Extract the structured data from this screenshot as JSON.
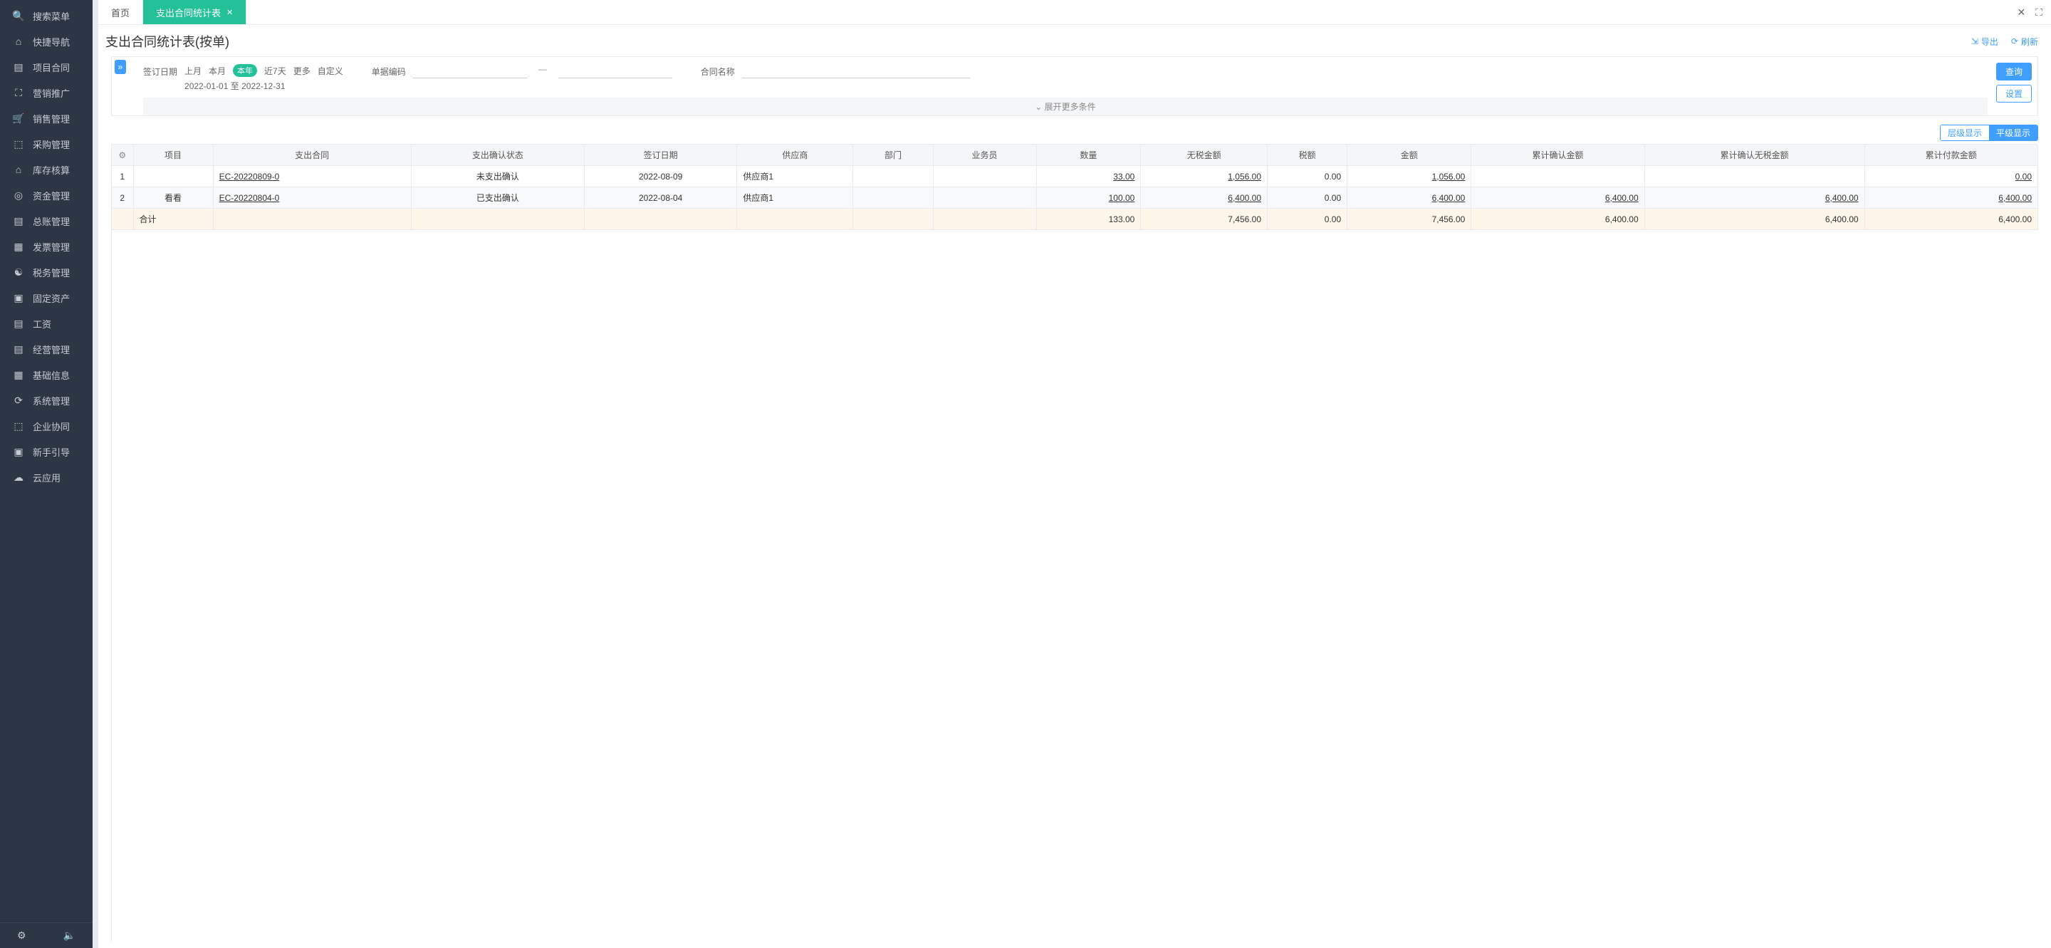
{
  "sidebar": {
    "items": [
      {
        "icon": "search",
        "label": "搜索菜单"
      },
      {
        "icon": "home",
        "label": "快捷导航"
      },
      {
        "icon": "doc",
        "label": "项目合同"
      },
      {
        "icon": "gift",
        "label": "营销推广"
      },
      {
        "icon": "cart",
        "label": "销售管理"
      },
      {
        "icon": "box",
        "label": "采购管理"
      },
      {
        "icon": "house",
        "label": "库存核算"
      },
      {
        "icon": "money",
        "label": "资金管理"
      },
      {
        "icon": "book",
        "label": "总账管理"
      },
      {
        "icon": "invoice",
        "label": "发票管理"
      },
      {
        "icon": "tax",
        "label": "税务管理"
      },
      {
        "icon": "asset",
        "label": "固定资产"
      },
      {
        "icon": "salary",
        "label": "工资"
      },
      {
        "icon": "manage",
        "label": "经营管理"
      },
      {
        "icon": "info",
        "label": "基础信息"
      },
      {
        "icon": "sys",
        "label": "系统管理"
      },
      {
        "icon": "collab",
        "label": "企业协同"
      },
      {
        "icon": "guide",
        "label": "新手引导"
      },
      {
        "icon": "cloud",
        "label": "云应用"
      }
    ]
  },
  "tabs": {
    "home": "首页",
    "active": "支出合同统计表"
  },
  "page": {
    "title": "支出合同统计表(按单)",
    "export": "导出",
    "refresh": "刷新"
  },
  "filter": {
    "signDateLabel": "签订日期",
    "presets": {
      "lastMonth": "上月",
      "thisMonth": "本月",
      "thisYear": "本年",
      "last7": "近7天",
      "more": "更多",
      "custom": "自定义"
    },
    "dateFrom": "2022-01-01",
    "dateTo": "2022-12-31",
    "dateSep": "至",
    "billNoLabel": "单据编码",
    "contractNameLabel": "合同名称",
    "queryBtn": "查询",
    "settingsBtn": "设置",
    "expandText": "展开更多条件"
  },
  "viewToggle": {
    "layer": "层级显示",
    "flat": "平级显示"
  },
  "table": {
    "columns": [
      "",
      "项目",
      "支出合同",
      "支出确认状态",
      "签订日期",
      "供应商",
      "部门",
      "业务员",
      "数量",
      "无税金额",
      "税额",
      "金额",
      "累计确认金额",
      "累计确认无税金额",
      "累计付款金额"
    ],
    "rows": [
      {
        "idx": "1",
        "project": "",
        "contract": "EC-20220809-0",
        "status": "未支出确认",
        "date": "2022-08-09",
        "supplier": "供应商1",
        "dept": "",
        "sales": "",
        "qty": "33.00",
        "noTax": "1,056.00",
        "tax": "0.00",
        "amount": "1,056.00",
        "cumConfirm": "",
        "cumConfirmNoTax": "",
        "cumPaid": "0.00"
      },
      {
        "idx": "2",
        "project": "看看",
        "contract": "EC-20220804-0",
        "status": "已支出确认",
        "date": "2022-08-04",
        "supplier": "供应商1",
        "dept": "",
        "sales": "",
        "qty": "100.00",
        "noTax": "6,400.00",
        "tax": "0.00",
        "amount": "6,400.00",
        "cumConfirm": "6,400.00",
        "cumConfirmNoTax": "6,400.00",
        "cumPaid": "6,400.00"
      }
    ],
    "total": {
      "label": "合计",
      "qty": "133.00",
      "noTax": "7,456.00",
      "tax": "0.00",
      "amount": "7,456.00",
      "cumConfirm": "6,400.00",
      "cumConfirmNoTax": "6,400.00",
      "cumPaid": "6,400.00"
    }
  },
  "iconGlyphs": {
    "search": "🔍",
    "home": "⌂",
    "doc": "▤",
    "gift": "⛶",
    "cart": "🛒",
    "box": "⬚",
    "house": "⌂",
    "money": "◎",
    "book": "▤",
    "invoice": "▦",
    "tax": "☯",
    "asset": "▣",
    "salary": "▤",
    "manage": "▤",
    "info": "▦",
    "sys": "⟳",
    "collab": "⬚",
    "guide": "▣",
    "cloud": "☁"
  }
}
